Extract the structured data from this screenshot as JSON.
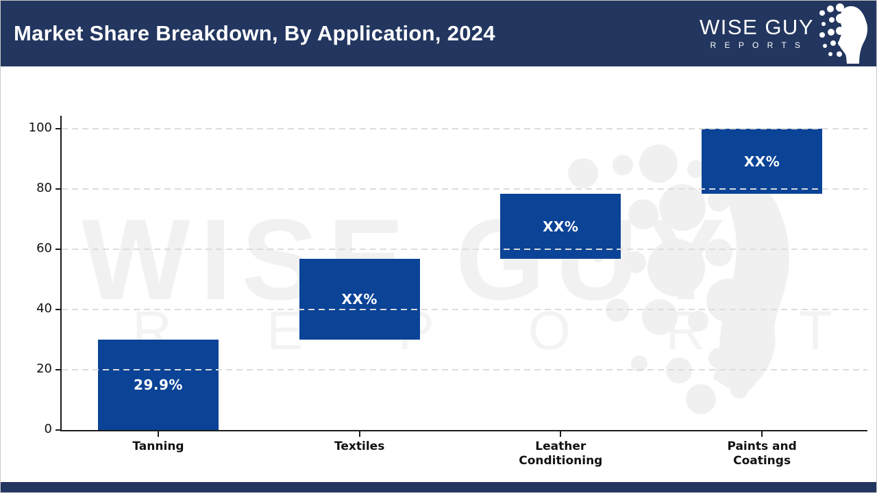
{
  "header": {
    "title": "Market Share Breakdown, By Application, 2024",
    "logo": {
      "name": "WISE GUY",
      "tagline": "R E P O R T S"
    }
  },
  "watermark": {
    "name": "WISE GUY",
    "tagline": "R E P O R T S"
  },
  "footer": {},
  "colors": {
    "header_bg": "#22365f",
    "footer_bg": "#22365f",
    "bar": "#0b4397",
    "gridline": "#dcdcdc",
    "axis": "#1a1a1a",
    "bar_label": "#ffffff",
    "watermark": "#f1f1f1"
  },
  "chart_data": {
    "type": "bar",
    "subtype": "waterfall",
    "title": "Market Share Breakdown, By Application, 2024",
    "categories": [
      "Tanning",
      "Textiles",
      "Leather Conditioning",
      "Paints and Coatings"
    ],
    "category_label_lines": [
      [
        "Tanning"
      ],
      [
        "Textiles"
      ],
      [
        "Leather",
        "Conditioning"
      ],
      [
        "Paints and",
        "Coatings"
      ]
    ],
    "segments": [
      {
        "category": "Tanning",
        "start": 0,
        "end": 29.9,
        "label": "29.9%"
      },
      {
        "category": "Textiles",
        "start": 29.9,
        "end": 56.8,
        "label": "XX%"
      },
      {
        "category": "Leather Conditioning",
        "start": 56.8,
        "end": 78.4,
        "label": "XX%"
      },
      {
        "category": "Paints and Coatings",
        "start": 78.4,
        "end": 100,
        "label": "XX%"
      }
    ],
    "ylim": [
      0,
      100
    ],
    "yticks": [
      0,
      20,
      40,
      60,
      80,
      100
    ],
    "xlabel": "",
    "ylabel": "",
    "grid": "dashed horizontal, drawn over bars",
    "legend": "none"
  }
}
